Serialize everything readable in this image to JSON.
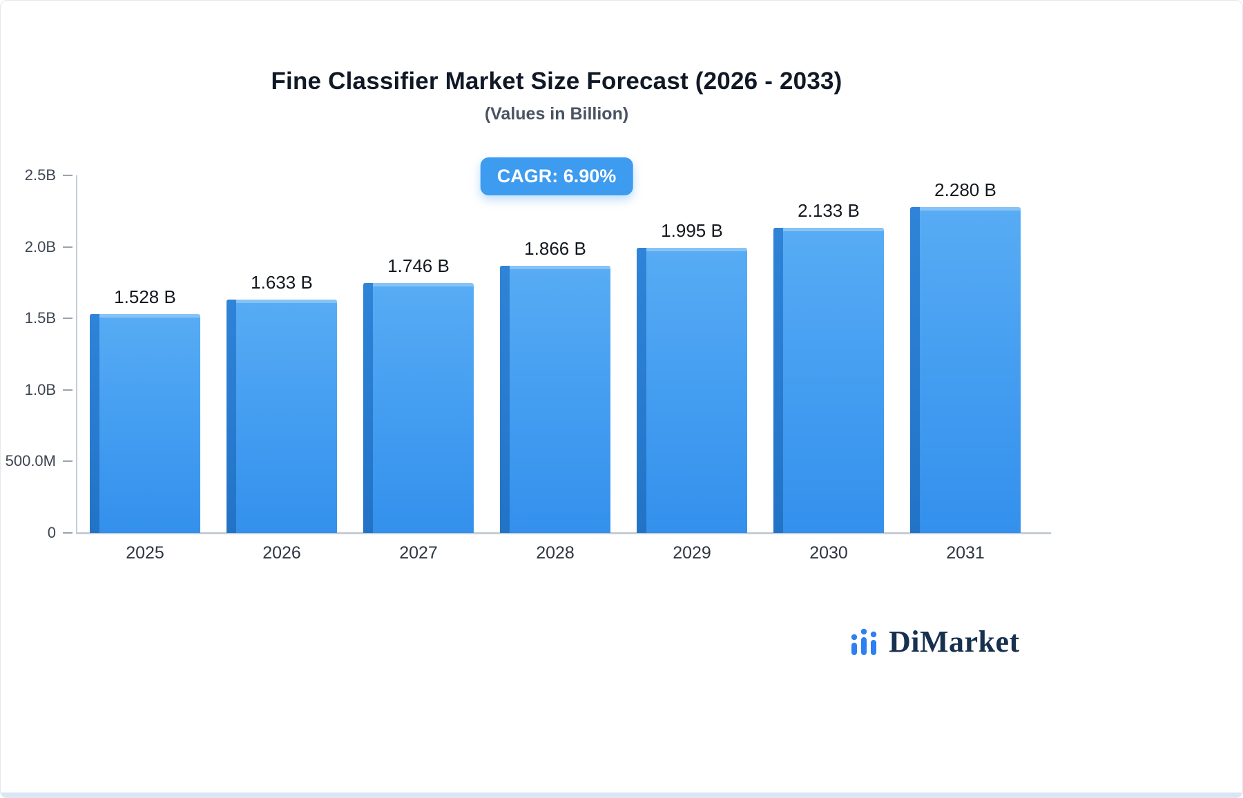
{
  "header": {
    "title": "Fine Classifier Market Size Forecast (2026 - 2033)",
    "subtitle": "(Values in Billion)"
  },
  "badge": {
    "label": "CAGR: 6.90%"
  },
  "chart_data": {
    "type": "bar",
    "title": "Fine Classifier Market Size Forecast (2026 - 2033)",
    "subtitle": "(Values in Billion)",
    "annotation": "CAGR: 6.90%",
    "categories": [
      "2025",
      "2026",
      "2027",
      "2028",
      "2029",
      "2030",
      "2031"
    ],
    "values": [
      1.528,
      1.633,
      1.746,
      1.866,
      1.995,
      2.133,
      2.28
    ],
    "value_labels": [
      "1.528 B",
      "1.633 B",
      "1.746 B",
      "1.866 B",
      "1.995 B",
      "2.133 B",
      "2.280 B"
    ],
    "unit": "Billion",
    "ylim": [
      0,
      2.5
    ],
    "y_ticks": [
      {
        "label": "2.5B",
        "value": 2.5
      },
      {
        "label": "2.0B",
        "value": 2.0
      },
      {
        "label": "1.5B",
        "value": 1.5
      },
      {
        "label": "1.0B",
        "value": 1.0
      },
      {
        "label": "500.0M",
        "value": 0.5
      },
      {
        "label": "0",
        "value": 0
      }
    ],
    "grid": false,
    "legend": "none",
    "bar_color": "#3d9af0",
    "bar_edge_color": "#2273c6",
    "axis_color": "#c6ccd4"
  },
  "logo": {
    "text": "DiMarket",
    "icon": "bar-chart-logo-icon",
    "icon_color": "#2e7ff0",
    "text_color": "#16304e"
  }
}
